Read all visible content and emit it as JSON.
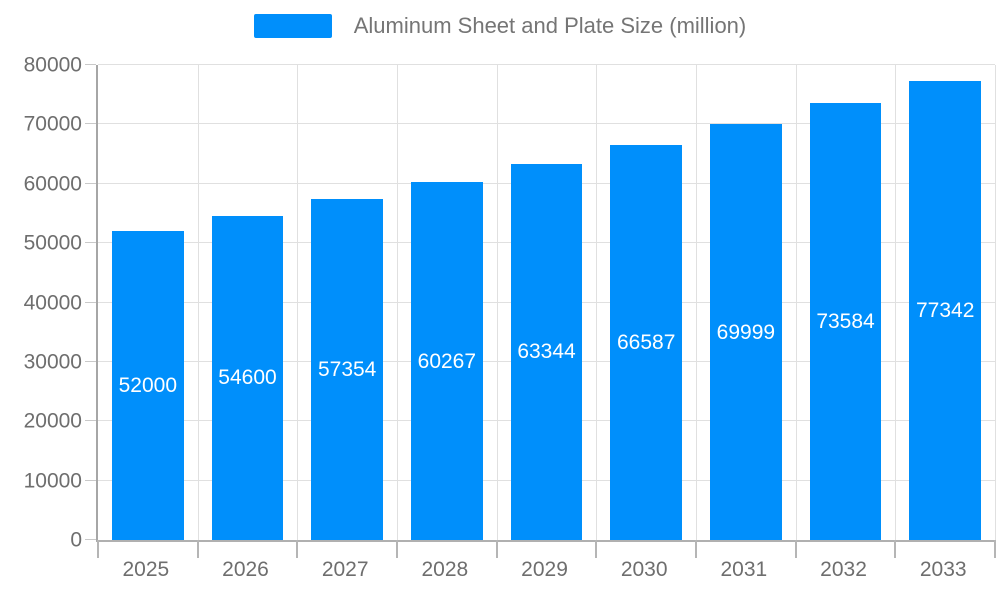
{
  "chart_data": {
    "type": "bar",
    "title": "Aluminum Sheet and Plate Size (million)",
    "categories": [
      "2025",
      "2026",
      "2027",
      "2028",
      "2029",
      "2030",
      "2031",
      "2032",
      "2033"
    ],
    "series": [
      {
        "name": "Aluminum Sheet and Plate Size (million)",
        "values": [
          52000,
          54600,
          57354,
          60267,
          63344,
          66587,
          69999,
          73584,
          77342
        ]
      }
    ],
    "value_labels": [
      "52000",
      "54600",
      "57354",
      "60267",
      "63344",
      "66587",
      "69999",
      "73584",
      "77342"
    ],
    "ytick_labels": [
      "0",
      "10000",
      "20000",
      "30000",
      "40000",
      "50000",
      "60000",
      "70000",
      "80000"
    ],
    "ylim": [
      0,
      80000
    ],
    "ytick_step": 10000,
    "xlabel": "",
    "ylabel": "",
    "grid": true,
    "legend_position": "top",
    "value_label_position": "inside-center"
  },
  "colors": {
    "bar": "#008FFB",
    "legend_marker": "#008FFB",
    "grid_line": "#e0e0e0",
    "axis_line": "#a6a6a6",
    "y_tick": "#c9c9c9",
    "x_tick": "#b5b5b5",
    "axis_label_text": "#6e6e6e",
    "legend_text": "#757575",
    "value_text": "#ffffff",
    "background": "#ffffff"
  }
}
